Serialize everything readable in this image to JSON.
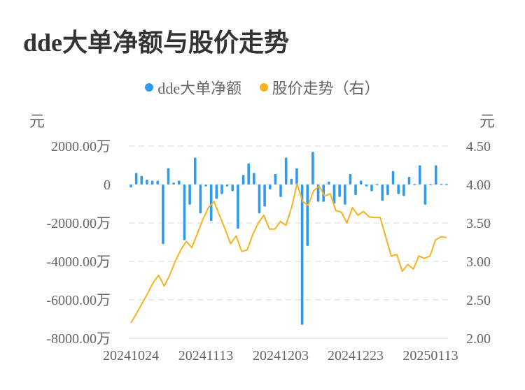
{
  "title": "dde大单净额与股价走势",
  "legend": {
    "items": [
      {
        "label": "dde大单净额",
        "color": "#2e9bf0"
      },
      {
        "label": "股价走势（右）",
        "color": "#f7b31e"
      }
    ]
  },
  "axes": {
    "left_unit": "元",
    "right_unit": "元",
    "left_ticks": [
      "2000.00万",
      "0",
      "-2000.00万",
      "-4000.00万",
      "-6000.00万",
      "-8000.00万"
    ],
    "right_ticks": [
      "4.50",
      "4.00",
      "3.50",
      "3.00",
      "2.50",
      "2.00"
    ],
    "x_ticks": [
      "20241024",
      "20241113",
      "20241203",
      "20241223",
      "20250113"
    ]
  },
  "chart_data": {
    "type": "bar+line",
    "title": "dde大单净额与股价走势",
    "xlabel": "",
    "ylabel": "元",
    "y2label": "元",
    "ylim": [
      -8000,
      2000
    ],
    "y2lim": [
      2.0,
      4.5
    ],
    "y_unit": "万元",
    "grid": true,
    "legend_position": "top",
    "x_tick_labels": [
      "20241024",
      "20241113",
      "20241203",
      "20241223",
      "20250113"
    ],
    "series": [
      {
        "name": "dde大单净额",
        "type": "bar",
        "axis": "left",
        "color": "#2e9bf0",
        "values": [
          -150,
          600,
          450,
          250,
          200,
          200,
          -3100,
          850,
          100,
          200,
          -2900,
          -1050,
          1400,
          -1500,
          -100,
          -1900,
          -750,
          -500,
          -100,
          -350,
          -2300,
          500,
          1100,
          600,
          -1500,
          -1150,
          -250,
          550,
          -650,
          1400,
          300,
          850,
          -7300,
          -3200,
          1700,
          -900,
          -900,
          150,
          -1000,
          -650,
          -1050,
          550,
          -550,
          200,
          -100,
          -350,
          0,
          -850,
          -550,
          700,
          -500,
          -600,
          400,
          0,
          1000,
          -1050,
          0,
          1000,
          0,
          0
        ]
      },
      {
        "name": "股价走势（右）",
        "type": "line",
        "axis": "right",
        "color": "#f7b31e",
        "values": [
          2.2,
          2.32,
          2.45,
          2.58,
          2.72,
          2.82,
          2.68,
          2.82,
          3.0,
          3.15,
          3.26,
          3.18,
          3.36,
          3.55,
          3.7,
          3.78,
          3.6,
          3.42,
          3.23,
          3.33,
          3.13,
          3.15,
          3.35,
          3.5,
          3.6,
          3.42,
          3.42,
          3.52,
          3.47,
          3.7,
          4.01,
          3.78,
          3.73,
          3.92,
          3.98,
          3.85,
          3.88,
          3.66,
          3.64,
          3.5,
          3.7,
          3.6,
          3.65,
          3.58,
          3.57,
          3.57,
          3.32,
          3.07,
          3.09,
          2.87,
          2.96,
          2.9,
          3.07,
          3.04,
          3.07,
          3.28,
          3.32,
          3.31
        ]
      }
    ]
  }
}
